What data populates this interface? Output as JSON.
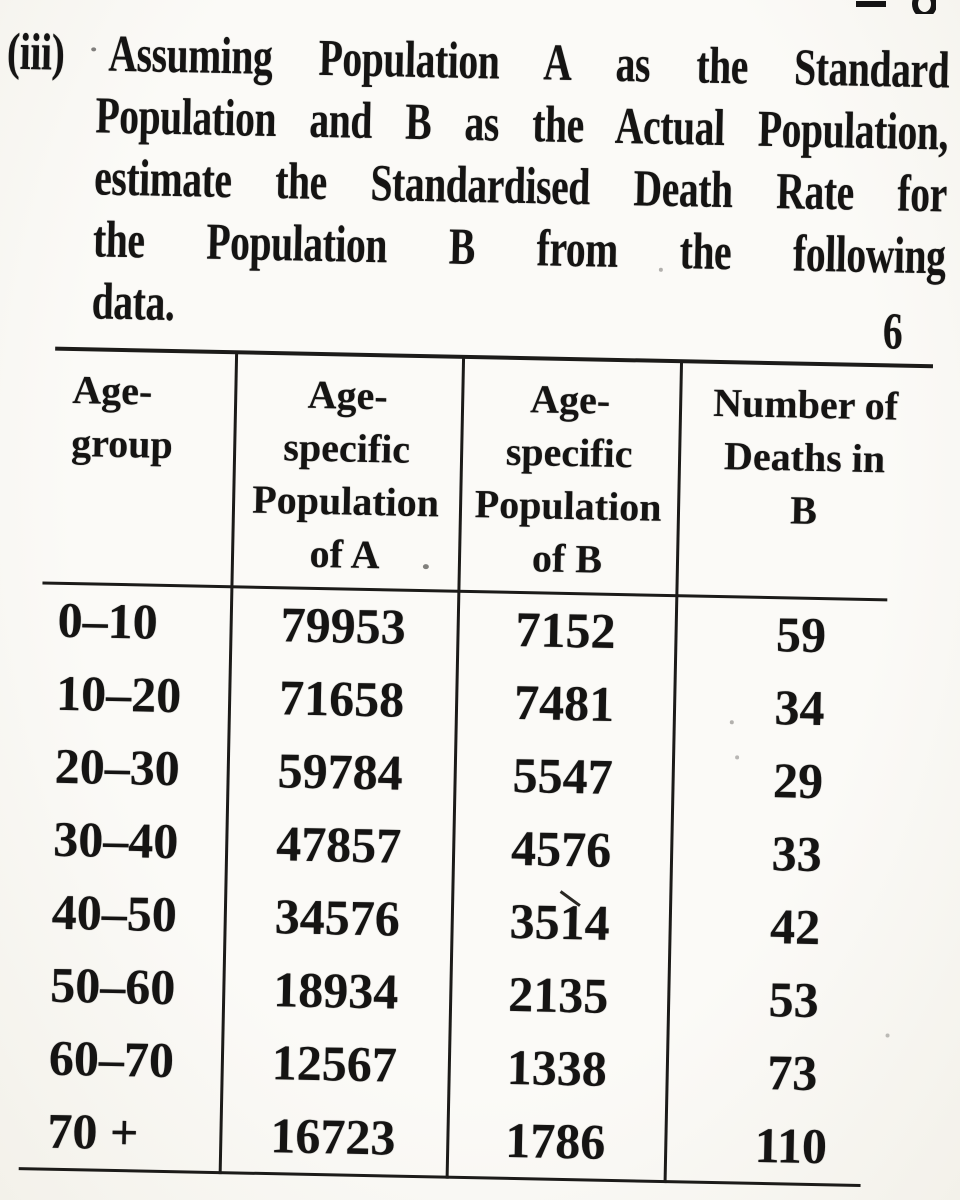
{
  "question": {
    "number": "(iii)",
    "lines": [
      "Assuming Population A as the Standard",
      "Population and B as the Actual Population,",
      "estimate the Standardised Death Rate for",
      "the Population B from the following",
      "data."
    ],
    "marks": "6"
  },
  "table": {
    "col_headers": [
      "Age-\ngroup",
      "Age-\nspecific\nPopulation\nof A",
      "Age-\nspecific\nPopulation\nof B",
      "Number of\nDeaths in\nB"
    ],
    "rows": [
      [
        "0–10",
        "79953",
        "7152",
        "59"
      ],
      [
        "10–20",
        "71658",
        "7481",
        "34"
      ],
      [
        "20–30",
        "59784",
        "5547",
        "29"
      ],
      [
        "30–40",
        "47857",
        "4576",
        "33"
      ],
      [
        "40–50",
        "34576",
        "3514",
        "42"
      ],
      [
        "50–60",
        "18934",
        "2135",
        "53"
      ],
      [
        "60–70",
        "12567",
        "1338",
        "73"
      ],
      [
        "70 +",
        "16723",
        "1786",
        "110"
      ]
    ]
  },
  "ink_color": "#1c1b19",
  "paper_color": "#fbfaf7"
}
